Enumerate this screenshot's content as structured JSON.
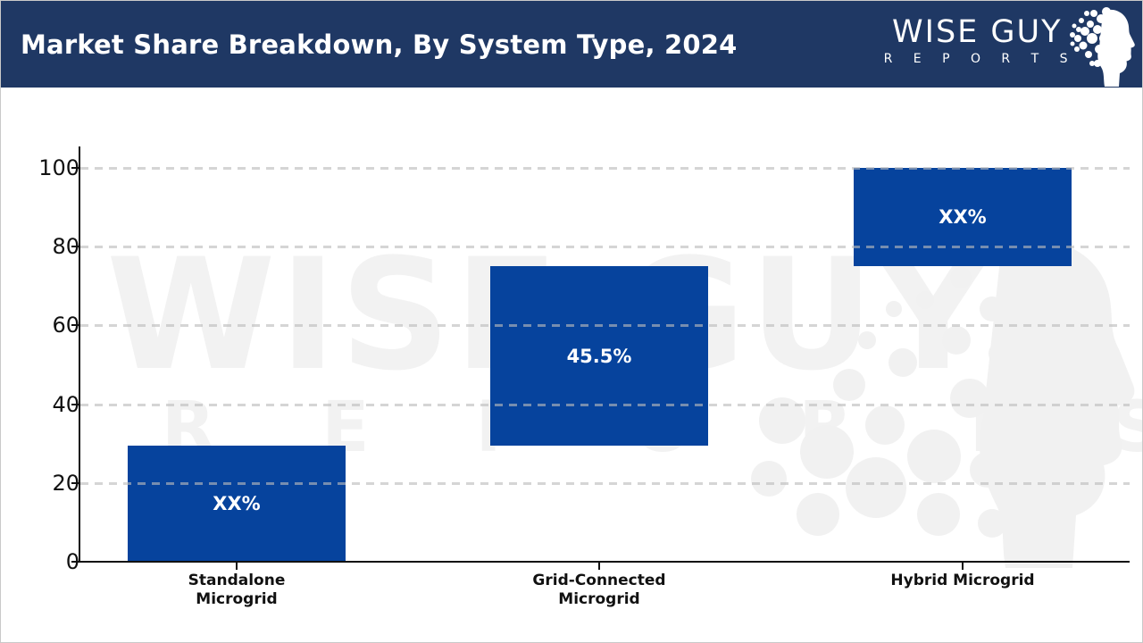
{
  "header": {
    "title": "Market Share Breakdown, By System Type, 2024",
    "bg_color": "#1F3864",
    "logo": {
      "line1": "WISE GUY",
      "line2": "R E P O R T S",
      "icon": "dotted-head-profile"
    }
  },
  "watermark": {
    "line1": "WISE GUY",
    "line2": "R E P O R T S",
    "icon": "dotted-head-profile"
  },
  "chart_data": {
    "type": "bar",
    "subtype": "floating-segment-waterfall",
    "title": "Market Share Breakdown, By System Type, 2024",
    "categories": [
      "Standalone\nMicrogrid",
      "Grid-Connected\nMicrogrid",
      "Hybrid Microgrid"
    ],
    "bars": [
      {
        "category": "Standalone Microgrid",
        "start": 0,
        "end": 29.5,
        "label": "XX%"
      },
      {
        "category": "Grid-Connected Microgrid",
        "start": 29.5,
        "end": 75,
        "label": "45.5%"
      },
      {
        "category": "Hybrid Microgrid",
        "start": 75,
        "end": 100,
        "label": "XX%"
      }
    ],
    "xlabel": "",
    "ylabel": "",
    "ylim": [
      0,
      105
    ],
    "yticks": [
      0,
      20,
      40,
      60,
      80,
      100
    ],
    "grid": "horizontal-dashed",
    "legend": "none",
    "bar_color": "#06439D",
    "bar_label_color": "#ffffff",
    "axis_color": "#111111"
  }
}
